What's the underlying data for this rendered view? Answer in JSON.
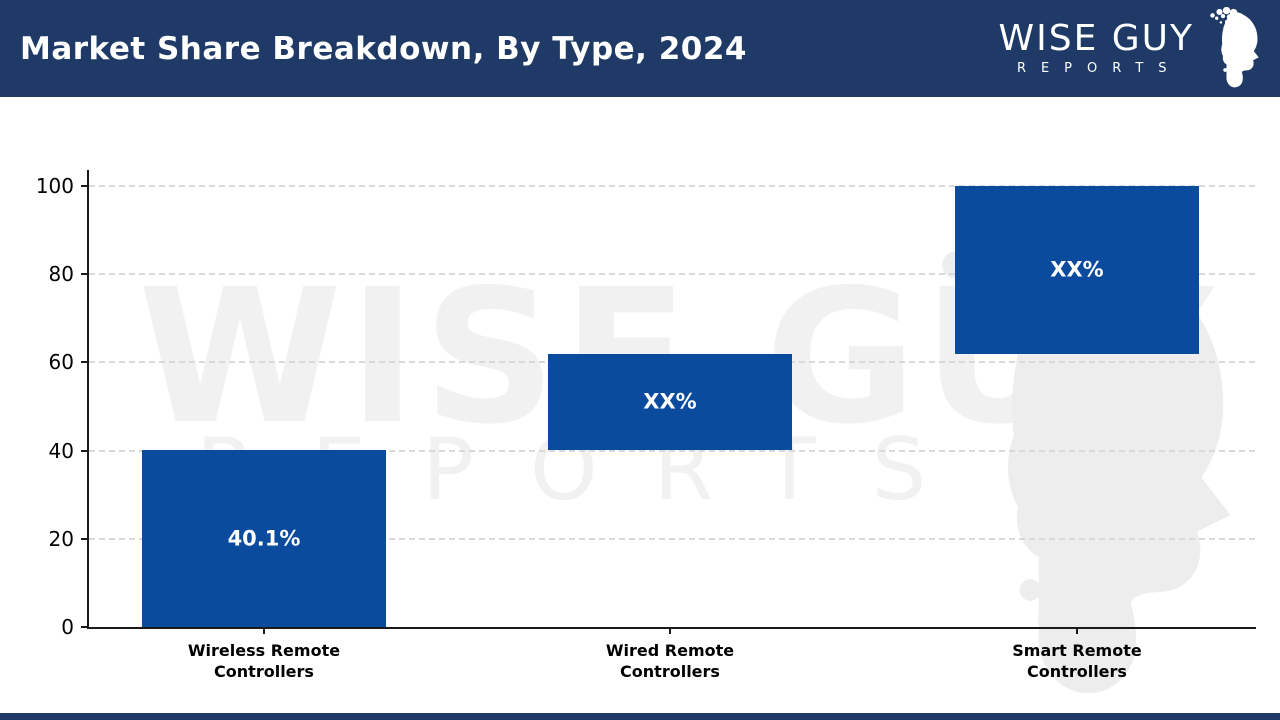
{
  "header": {
    "title": "Market Share Breakdown, By Type, 2024",
    "logo": {
      "primary": "WISE GUY",
      "secondary": "REPORTS"
    }
  },
  "watermark": {
    "primary": "WISE GUY",
    "secondary": "REPORTS"
  },
  "colors": {
    "header_bg": "#1f3a66",
    "footer_bg": "#1f3a66",
    "bar": "#0a4b9e",
    "bar_label": "#ffffff",
    "grid": "#d9d9d9",
    "axis": "#1a1a1a",
    "watermark": "#f1f1f1"
  },
  "chart_data": {
    "type": "bar",
    "variant": "waterfall",
    "title": "Market Share Breakdown, By Type, 2024",
    "categories": [
      "Wireless Remote Controllers",
      "Wired Remote Controllers",
      "Smart Remote Controllers"
    ],
    "segments": [
      {
        "category": "Wireless Remote Controllers",
        "start": 0,
        "end": 40.1,
        "label": "40.1%"
      },
      {
        "category": "Wired Remote Controllers",
        "start": 40.1,
        "end": 62,
        "label": "XX%"
      },
      {
        "category": "Smart Remote Controllers",
        "start": 62,
        "end": 100,
        "label": "XX%"
      }
    ],
    "ylim": [
      0,
      100
    ],
    "yticks": [
      0,
      20,
      40,
      60,
      80,
      100
    ],
    "xlabel": "",
    "ylabel": "",
    "grid": true,
    "legend": null
  }
}
